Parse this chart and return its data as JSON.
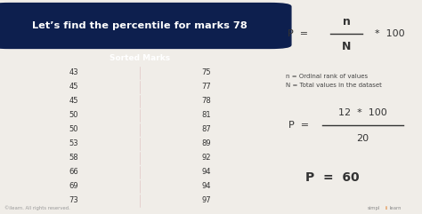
{
  "title": "Let’s find the percentile for marks 78",
  "title_bg": "#0d1f4e",
  "title_color": "#ffffff",
  "table_header": "Sorted Marks",
  "table_header_bg": "#4a7a35",
  "table_header_color": "#ffffff",
  "table_row_bg_dark": "#f2c8c8",
  "table_row_bg_light": "#fbe8e8",
  "table_col1": [
    43,
    45,
    45,
    50,
    50,
    53,
    58,
    66,
    69,
    73
  ],
  "table_col2": [
    75,
    77,
    78,
    81,
    87,
    89,
    92,
    94,
    94,
    97
  ],
  "formula1_bg": "#dde9cc",
  "formula2_bg": "#c5d9ed",
  "formula3_bg": "#fce8a0",
  "note_text": "n = Ordinal rank of values\nN = Total values in the dataset",
  "note_color": "#444444",
  "bg_color": "#f0ede8",
  "footer_left": "©ilearn. All rights reserved.",
  "footer_color": "#999999",
  "simpl_color": "#888888",
  "i_color": "#e07820",
  "learn_color": "#888888"
}
